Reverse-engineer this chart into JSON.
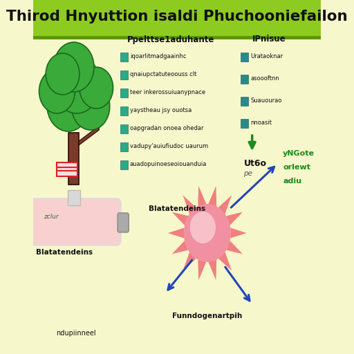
{
  "title": "Thirod Hnyuttion isaldi Phuchooniefailon",
  "title_bg": "#8ecb20",
  "title_stripe": "#5a9900",
  "body_bg": "#f7f7cc",
  "title_color": "#111111",
  "title_fontsize": 15.5,
  "left_col_header": "Ppelttse1aduhante",
  "right_col_header": "IPnisue",
  "left_items": [
    "iqoarlitmadgaainhc",
    "qnaiupctatuteoouss clt",
    "teer inkerossuiuanypnace",
    "yaystheau jsy ouotsa",
    "oapgradan onoea ohedar",
    "vadupy'auiufiudoc uaurum",
    "auadopuinoeseoiouanduia"
  ],
  "right_items": [
    "Urataoknar",
    "asoooftnn",
    "Suauourao",
    "nnoasit"
  ],
  "bottom_label_left": "Blatatendeins",
  "bottom_label_left2": "ndupiinneel",
  "bottom_label_center": "Funndogenartpih",
  "bottom_label_right1": "Ut6o",
  "bottom_label_right2": "pe",
  "bottom_label_right3": "yNGote",
  "bottom_label_right4": "orlewt",
  "bottom_label_right5": "adiu",
  "tree_trunk_color": "#7b3b2b",
  "tree_canopy_color": "#3aaa3a",
  "canopy_outline": "#1a6a1a",
  "flask_body_color": "#f8d0d0",
  "flask_neck_color": "#e8e8e8",
  "flask_outline": "#cccccc",
  "sun_body_color": "#f090a0",
  "sun_ray_color": "#f08080",
  "arrow_blue_color": "#2244bb",
  "arrow_green_color": "#228822",
  "item_icon_color": "#2aaa8a",
  "right_icon_color": "#2a8a8a",
  "sign_color": "#dd2222",
  "sign_bg": "#ffdddd"
}
